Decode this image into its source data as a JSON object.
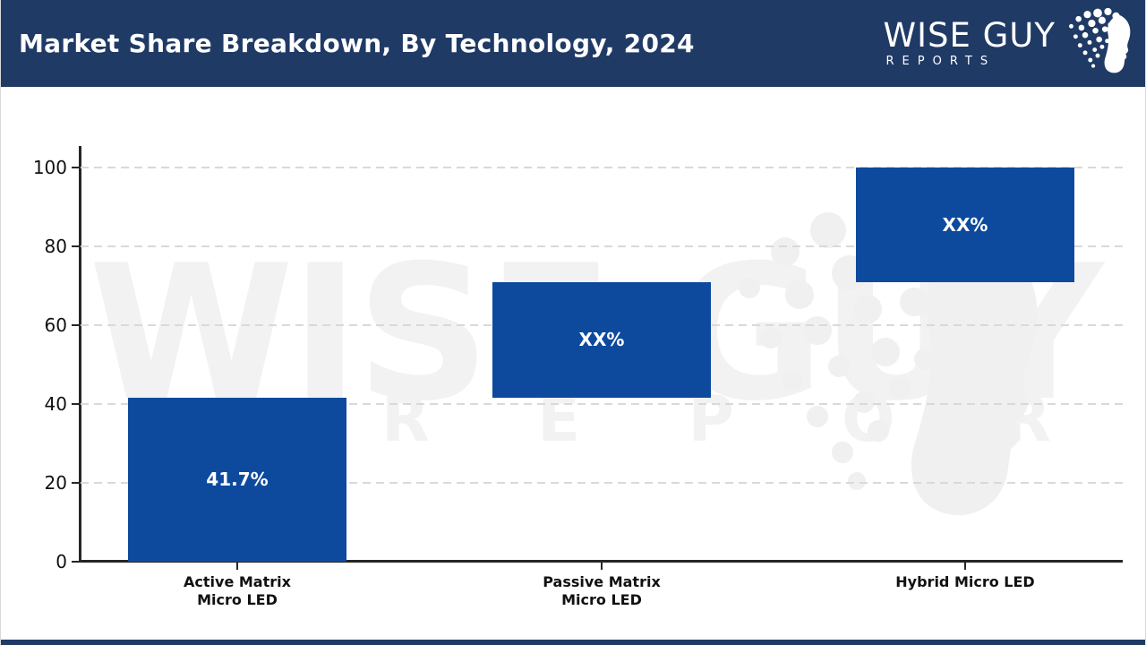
{
  "header": {
    "title": "Market Share Breakdown, By Technology, 2024",
    "logo": {
      "line1": "WISE GUY",
      "line2": "REPORTS"
    }
  },
  "watermark": {
    "line1": "WISE GUY",
    "line2": "R E P O R T S"
  },
  "colors": {
    "header_bg": "#203A66",
    "footer_bg": "#203A66",
    "bar": "#0D4A9E",
    "grid": "#D9D9D9",
    "axis": "#262626",
    "bar_label_text": "#FFFFFF",
    "watermark": "#F2F2F2"
  },
  "chart_data": {
    "type": "bar",
    "subtype": "waterfall",
    "title": "Market Share Breakdown, By Technology, 2024",
    "categories": [
      [
        "Active Matrix",
        "Micro LED"
      ],
      [
        "Passive Matrix",
        "Micro LED"
      ],
      [
        "Hybrid Micro LED"
      ]
    ],
    "bars": [
      {
        "category": "Active Matrix Micro LED",
        "start": 0,
        "end": 41.7,
        "label": "41.7%"
      },
      {
        "category": "Passive Matrix Micro LED",
        "start": 41.7,
        "end": 70.9,
        "label": "XX%"
      },
      {
        "category": "Hybrid Micro LED",
        "start": 70.9,
        "end": 100,
        "label": "XX%"
      }
    ],
    "yticks": [
      0,
      20,
      40,
      60,
      80,
      100
    ],
    "ylim": [
      0,
      100
    ],
    "xlabel": "",
    "ylabel": "",
    "grid": "horizontal-dashed",
    "legend": "none"
  }
}
